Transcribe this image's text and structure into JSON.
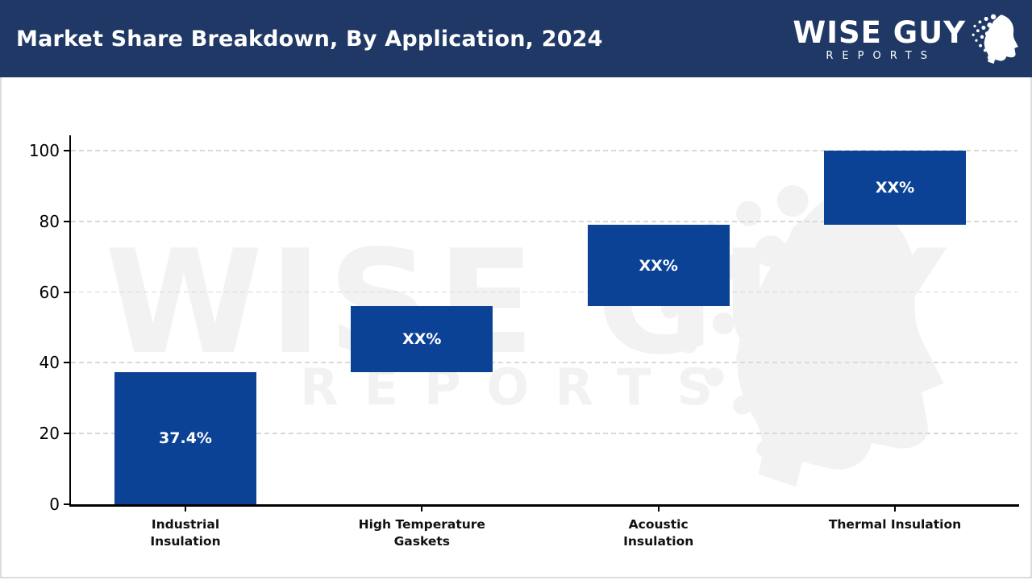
{
  "header": {
    "title": "Market Share Breakdown, By Application, 2024",
    "logo": {
      "line1": "WISE GUY",
      "line2": "REPORTS"
    }
  },
  "watermark": {
    "line1": "WISE GUY",
    "line2": "REPORTS"
  },
  "colors": {
    "header_bg": "#1f3866",
    "header_text": "#ffffff",
    "bar": "#0b4296",
    "bar_label": "#ffffff",
    "grid": "#d9d9d9",
    "axis": "#000000",
    "tick_text": "#000000",
    "category_text": "#111111",
    "watermark": "#f2f2f2",
    "card_border": "#dcdcdc"
  },
  "chart_data": {
    "type": "bar",
    "variant": "waterfall",
    "title": "Market Share Breakdown, By Application, 2024",
    "categories": [
      [
        "Industrial",
        "Insulation"
      ],
      [
        "High Temperature",
        "Gaskets"
      ],
      [
        "Acoustic",
        "Insulation"
      ],
      [
        "Thermal Insulation"
      ]
    ],
    "bars": [
      {
        "label": "37.4%",
        "start": 0,
        "end": 37.4
      },
      {
        "label": "XX%",
        "start": 37.4,
        "end": 56
      },
      {
        "label": "XX%",
        "start": 56,
        "end": 79
      },
      {
        "label": "XX%",
        "start": 79,
        "end": 100
      }
    ],
    "ylim": [
      0,
      100
    ],
    "yticks": [
      0,
      20,
      40,
      60,
      80,
      100
    ],
    "xlabel": "",
    "ylabel": "",
    "legend": "none",
    "grid": {
      "horizontal": true,
      "style": "dashed"
    }
  }
}
